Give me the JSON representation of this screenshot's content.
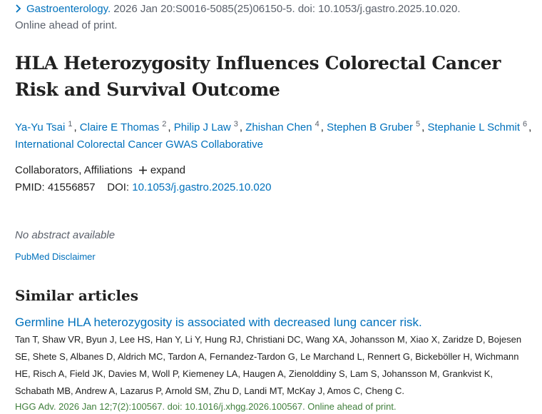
{
  "citation": {
    "journal": "Gastroenterology.",
    "details": " 2026 Jan 20:S0016-5085(25)06150-5. doi: 10.1053/j.gastro.2025.10.020.",
    "status": "Online ahead of print."
  },
  "title": "HLA Heterozygosity Influences Colorectal Cancer Risk and Survival Outcome",
  "authors": [
    {
      "name": "Ya-Yu Tsai",
      "sup": "1",
      "sep": ","
    },
    {
      "name": "Claire E Thomas",
      "sup": "2",
      "sep": ","
    },
    {
      "name": "Philip J Law",
      "sup": "3",
      "sep": ","
    },
    {
      "name": "Zhishan Chen",
      "sup": "4",
      "sep": ","
    },
    {
      "name": "Stephen B Gruber",
      "sup": "5",
      "sep": ","
    },
    {
      "name": "Stephanie L Schmit",
      "sup": "6",
      "sep": ","
    },
    {
      "name": "International Colorectal Cancer GWAS Collaborative"
    }
  ],
  "collaborators": "Collaborators, Affiliations",
  "expand": "expand",
  "pmid": "PMID: 41556857",
  "doi_label": "DOI:",
  "doi": "10.1053/j.gastro.2025.10.020",
  "no_abstract": "No abstract available",
  "disclaimer": "PubMed Disclaimer",
  "similar": {
    "heading": "Similar articles",
    "articles": [
      {
        "title": "Germline HLA heterozygosity is associated with decreased lung cancer risk.",
        "authors": "Tan T, Shaw VR, Byun J, Lee HS, Han Y, Li Y, Hung RJ, Christiani DC, Wang XA, Johansson M, Xiao X, Zaridze D, Bojesen SE, Shete S, Albanes D, Aldrich MC, Tardon A, Fernandez-Tardon G, Le Marchand L, Rennert G, Bickeböller H, Wichmann HE, Risch A, Field JK, Davies M, Woll P, Kiemeney LA, Haugen A, Zienolddiny S, Lam S, Johansson M, Grankvist K, Schabath MB, Andrew A, Lazarus P, Arnold SM, Zhu D, Landi MT, McKay J, Amos C, Cheng C.",
        "citation": "HGG Adv. 2026 Jan 12;7(2):100567. doi: 10.1016/j.xhgg.2026.100567. Online ahead of print."
      }
    ]
  }
}
